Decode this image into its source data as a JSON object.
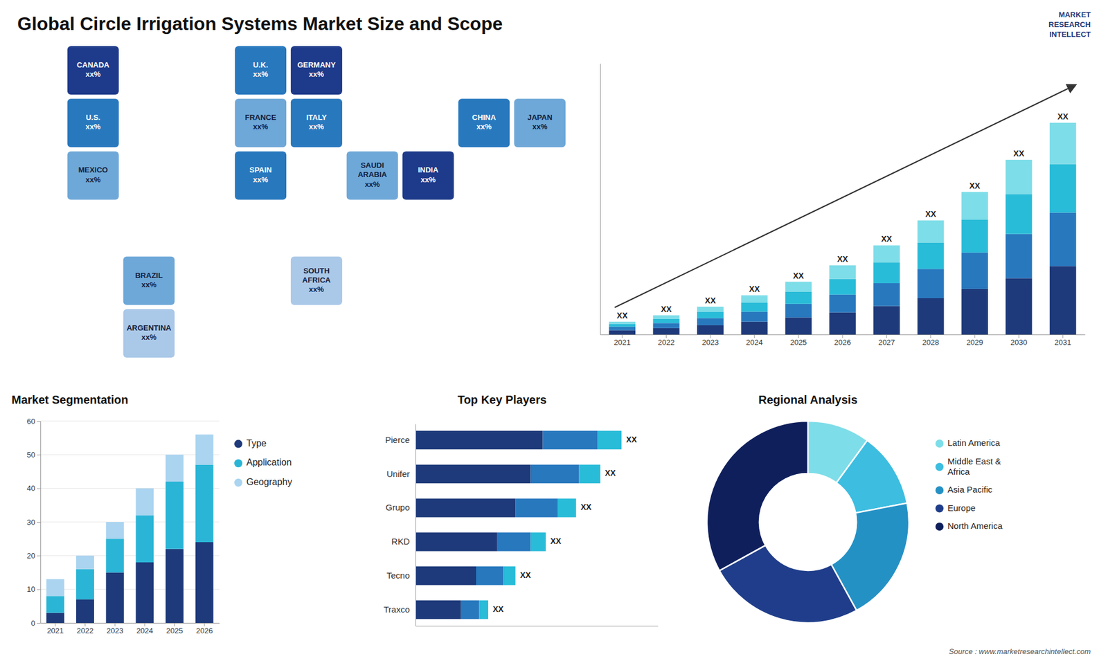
{
  "chart_data": [
    {
      "type": "map",
      "title": "Global Circle Irrigation Systems Market Size and Scope",
      "categories": [
        "CANADA\nxx%",
        "U.S.\nxx%",
        "MEXICO\nxx%",
        "BRAZIL\nxx%",
        "ARGENTINA\nxx%",
        "U.K.\nxx%",
        "FRANCE\nxx%",
        "GERMANY\nxx%",
        "SPAIN\nxx%",
        "ITALY\nxx%",
        "SAUDI\nARABIA\nxx%",
        "SOUTH\nAFRICA\nxx%",
        "CHINA\nxx%",
        "JAPAN\nxx%",
        "INDIA\nxx%"
      ],
      "colors": [
        "#1e3a8a",
        "#2878be",
        "#6ea8d8",
        "#6ea8d8",
        "#aac8e8",
        "#2878be",
        "#6ea8d8",
        "#1e3a8a",
        "#2878be",
        "#2878be",
        "#6ea8d8",
        "#aac8e8",
        "#2878be",
        "#6ea8d8",
        "#1e3a8a"
      ],
      "annotations": [
        "MARKET\nRESEARCH\nINTELLECT",
        "Source : www.marketresearchintellect.com"
      ]
    },
    {
      "type": "bar",
      "stacked": true,
      "categories": [
        "2021",
        "2022",
        "2023",
        "2024",
        "2025",
        "2026",
        "2027",
        "2028",
        "2029",
        "2030",
        "2031"
      ],
      "series": [
        {
          "color": "#1e3a7a",
          "values": [
            0.6,
            0.9,
            1.3,
            1.8,
            2.4,
            3.1,
            4.0,
            5.1,
            6.4,
            7.9,
            9.6
          ]
        },
        {
          "color": "#2878be",
          "values": [
            0.5,
            0.7,
            1.0,
            1.4,
            1.9,
            2.5,
            3.2,
            4.1,
            5.1,
            6.2,
            7.5
          ]
        },
        {
          "color": "#29bcd8",
          "values": [
            0.4,
            0.6,
            0.9,
            1.3,
            1.7,
            2.2,
            2.9,
            3.7,
            4.6,
            5.6,
            6.8
          ]
        },
        {
          "color": "#7ddde8",
          "values": [
            0.3,
            0.5,
            0.7,
            1.0,
            1.4,
            1.9,
            2.4,
            3.1,
            3.9,
            4.8,
            5.8
          ]
        }
      ],
      "ylim": [
        0,
        38.016
      ],
      "yticks": [],
      "tick_labels": "x",
      "annotations": [
        "XX",
        "XX",
        "XX",
        "XX",
        "XX",
        "XX",
        "XX",
        "XX",
        "XX",
        "XX",
        "XX"
      ]
    },
    {
      "type": "bar",
      "stacked": true,
      "title": "Market Segmentation",
      "categories": [
        "2021",
        "2022",
        "2023",
        "2024",
        "2025",
        "2026"
      ],
      "series": [
        {
          "name": "Type",
          "color": "#1e3a7a",
          "values": [
            3,
            7,
            15,
            18,
            22,
            24
          ]
        },
        {
          "name": "Application",
          "color": "#2ab5d6",
          "values": [
            5,
            9,
            10,
            14,
            20,
            23
          ]
        },
        {
          "name": "Geography",
          "color": "#aad4f0",
          "values": [
            5,
            4,
            5,
            8,
            8,
            9
          ]
        }
      ],
      "ylim": [
        0,
        60
      ],
      "yticks": [
        0,
        10,
        20,
        30,
        40,
        50,
        60
      ],
      "grid": true,
      "legend": "right"
    },
    {
      "type": "bar",
      "orientation": "horizontal",
      "stacked": true,
      "title": "Top Key Players",
      "categories": [
        "Pierce",
        "Unifer",
        "Grupo",
        "RKD",
        "Tecno",
        "Traxco"
      ],
      "series": [
        {
          "color": "#1e3a7a",
          "values": [
            42,
            38,
            33,
            27,
            20,
            15
          ]
        },
        {
          "color": "#2878be",
          "values": [
            18,
            16,
            14,
            11,
            9,
            6
          ]
        },
        {
          "color": "#29bcd8",
          "values": [
            8,
            7,
            6,
            5,
            4,
            3
          ]
        }
      ],
      "xlim": [
        0,
        80
      ],
      "xticks": [],
      "tick_labels": "y",
      "annotations": [
        "XX",
        "XX",
        "XX",
        "XX",
        "XX",
        "XX"
      ]
    },
    {
      "type": "donut",
      "title": "Regional Analysis",
      "categories": [
        "Latin America",
        "Middle East &\nAfrica",
        "Asia Pacific",
        "Europe",
        "North America"
      ],
      "values": [
        10,
        12,
        20,
        25,
        33
      ],
      "colors": [
        "#7ddde8",
        "#3dbde0",
        "#2491c5",
        "#1f3d8a",
        "#0f1f5c"
      ],
      "legend": "right"
    }
  ]
}
